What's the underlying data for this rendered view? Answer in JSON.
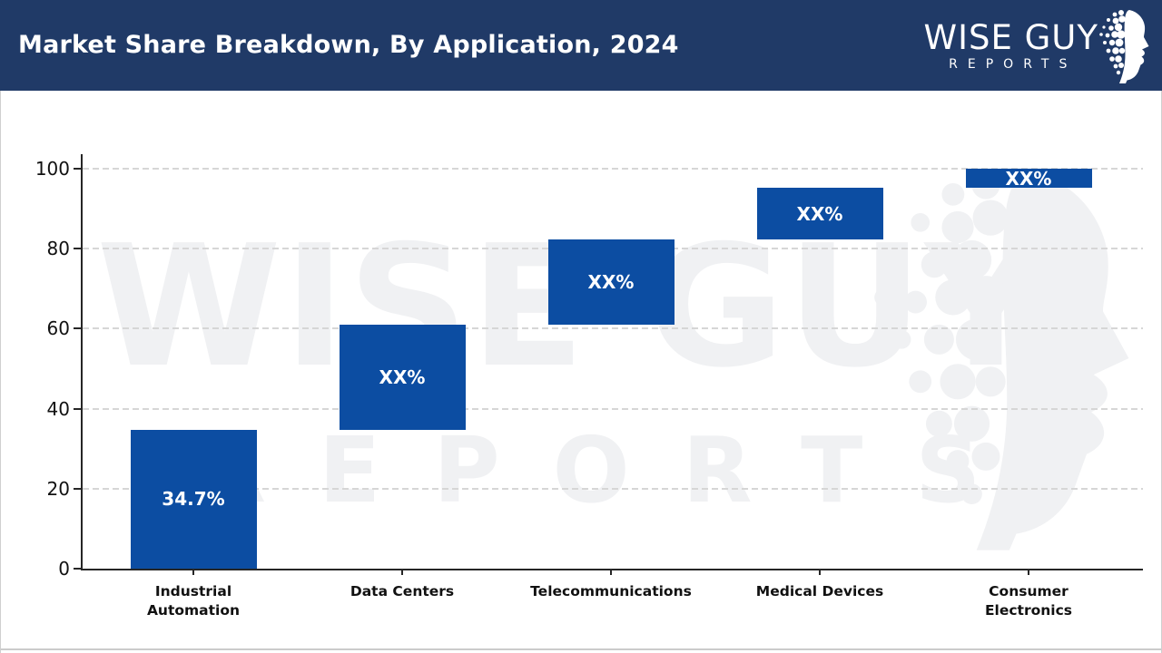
{
  "header": {
    "title": "Market Share Breakdown, By Application, 2024",
    "logo": {
      "wordmark": "WISE GUY",
      "subtext": "REPORTS"
    }
  },
  "watermark": {
    "wordmark": "WISE GUY",
    "subtext": "REPORTS"
  },
  "colors": {
    "header_bg": "#203a67",
    "bar": "#0c4da2",
    "bar_label": "#ffffff",
    "grid": "#d6d6d6",
    "axis": "#262626",
    "watermark": "#f0f1f3"
  },
  "chart_data": {
    "type": "bar",
    "subtype": "waterfall",
    "title": "Market Share Breakdown, By Application, 2024",
    "categories": [
      "Industrial\nAutomation",
      "Data Centers",
      "Telecommunications",
      "Medical Devices",
      "Consumer\nElectronics"
    ],
    "segments": [
      {
        "category": "Industrial Automation",
        "start": 0,
        "end": 34.7,
        "label": "34.7%"
      },
      {
        "category": "Data Centers",
        "start": 34.7,
        "end": 61.0,
        "label": "XX%"
      },
      {
        "category": "Telecommunications",
        "start": 61.0,
        "end": 82.3,
        "label": "XX%"
      },
      {
        "category": "Medical Devices",
        "start": 82.3,
        "end": 95.2,
        "label": "XX%"
      },
      {
        "category": "Consumer Electronics",
        "start": 95.2,
        "end": 100.0,
        "label": "XX%"
      }
    ],
    "ylabel": "",
    "xlabel": "",
    "ylim": [
      0,
      103.6
    ],
    "yticks": [
      0,
      20,
      40,
      60,
      80,
      100
    ],
    "grid": "horizontal-dashed",
    "legend": "none"
  }
}
